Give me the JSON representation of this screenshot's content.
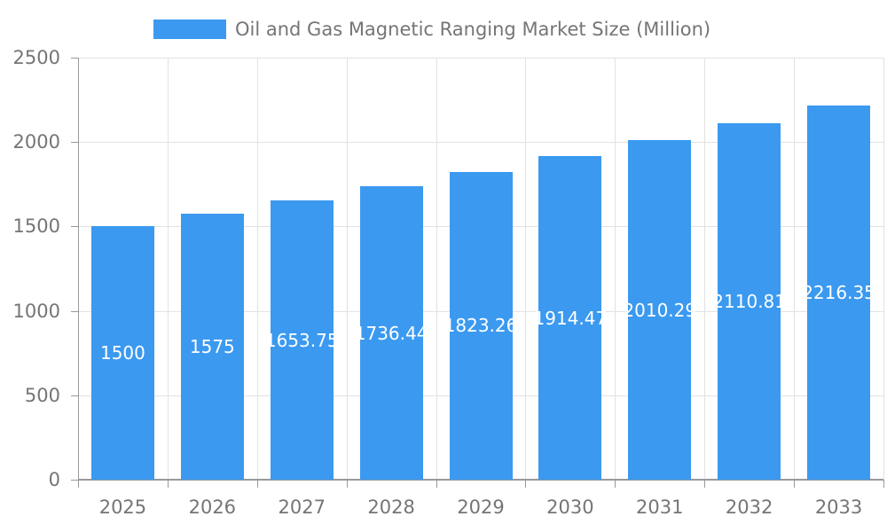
{
  "legend": {
    "items": [
      {
        "label": "Oil and Gas Magnetic Ranging Market Size (Million)"
      }
    ]
  },
  "chart_data": {
    "type": "bar",
    "title": "Oil and Gas Magnetic Ranging Market Size (Million)",
    "series_name": "Oil and Gas Magnetic Ranging Market Size (Million)",
    "categories": [
      "2025",
      "2026",
      "2027",
      "2028",
      "2029",
      "2030",
      "2031",
      "2032",
      "2033"
    ],
    "values": [
      1500,
      1575,
      1653.75,
      1736.44,
      1823.26,
      1914.47,
      2010.29,
      2110.81,
      2216.35
    ],
    "value_labels": [
      "1500",
      "1575",
      "1653.75",
      "1736.44",
      "1823.26",
      "1914.47",
      "2010.29",
      "2110.81",
      "2216.35"
    ],
    "xlabel": "",
    "ylabel": "",
    "ylim": [
      0,
      2500
    ],
    "yticks": [
      0,
      500,
      1000,
      1500,
      2000,
      2500
    ],
    "ytick_labels": [
      "0",
      "500",
      "1000",
      "1500",
      "2000",
      "2500"
    ],
    "grid": true,
    "legend_position": "top-center",
    "bar_label_position": "inside-center"
  },
  "colors": {
    "bar": "#3B99F0",
    "axis": "#999999",
    "gridline": "#E2E2E2",
    "axis_text": "#757575",
    "bar_label_text": "#FFFFFF",
    "background": "#FFFFFF"
  }
}
